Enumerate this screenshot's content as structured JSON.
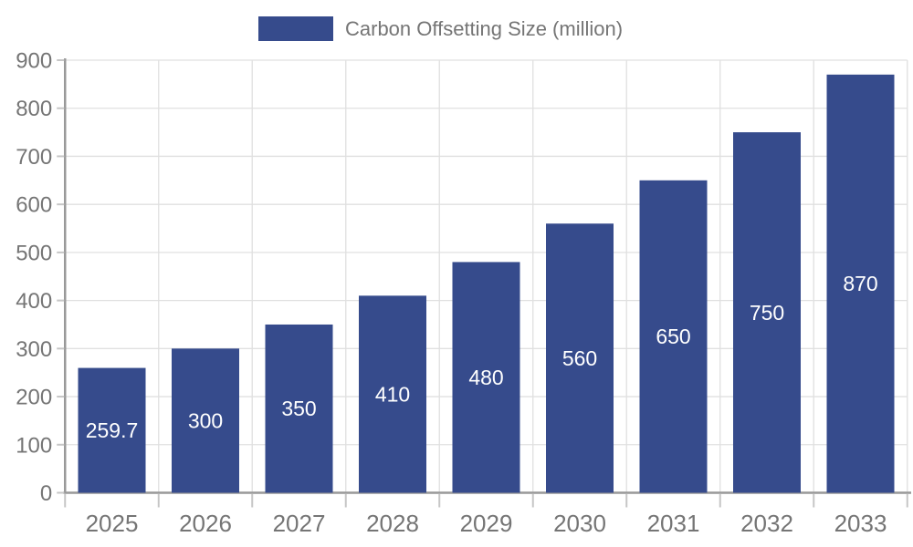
{
  "legend": {
    "label": "Carbon Offsetting Size (million)",
    "swatch_color": "#364B8C",
    "text_color": "#757575"
  },
  "chart_data": {
    "type": "bar",
    "title": "Carbon Offsetting Size (million)",
    "categories": [
      "2025",
      "2026",
      "2027",
      "2028",
      "2029",
      "2030",
      "2031",
      "2032",
      "2033"
    ],
    "series": [
      {
        "name": "Carbon Offsetting Size (million)",
        "values": [
          259.7,
          300,
          350,
          410,
          480,
          560,
          650,
          750,
          870
        ]
      }
    ],
    "data_labels": [
      "259.7",
      "300",
      "350",
      "410",
      "480",
      "560",
      "650",
      "750",
      "870"
    ],
    "legend_entries": [
      "Carbon Offsetting Size (million)"
    ],
    "legend_position": "top",
    "xlabel": "",
    "ylabel": "",
    "ylim": [
      0,
      900
    ],
    "yticks": [
      0,
      100,
      200,
      300,
      400,
      500,
      600,
      700,
      800,
      900
    ],
    "grid": true,
    "colors": {
      "bar": "#364B8C",
      "bar_label": "#FFFFFF",
      "axis_text": "#757575",
      "grid_line": "#E0E0E0",
      "axis_line": "#999999",
      "tick": "#C6C6C6",
      "background": "#FFFFFF"
    }
  }
}
